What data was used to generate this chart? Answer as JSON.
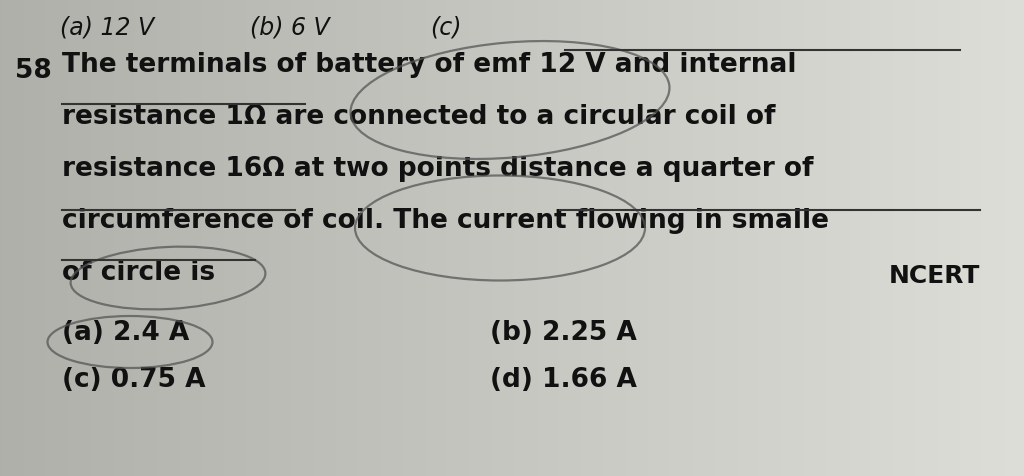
{
  "background_color_left": "#b8b7b0",
  "background_color_right": "#d8d8d4",
  "top_text_a": "(a) 12 V",
  "top_text_b": "(b) 6 V",
  "top_text_c": "(c)",
  "question_number": "58",
  "line1": "The terminals of battery of emf 12 V and internal",
  "line2": "resistance 1Ω are connected to a circular coil of",
  "line3": "resistance 16Ω at two points distance a quarter of",
  "line4": "circumference of coil. The current flowing in smalle",
  "line5": "of circle is",
  "ncert_label": "NCERT",
  "opt_a": "(a) 2.4 A",
  "opt_b": "(b) 2.25 A",
  "opt_c": "(c) 0.75 A",
  "opt_d": "(d) 1.66 A",
  "text_color": "#111111",
  "font_size_main": 19,
  "font_size_options": 19,
  "font_size_top": 17,
  "font_size_ncert": 18
}
